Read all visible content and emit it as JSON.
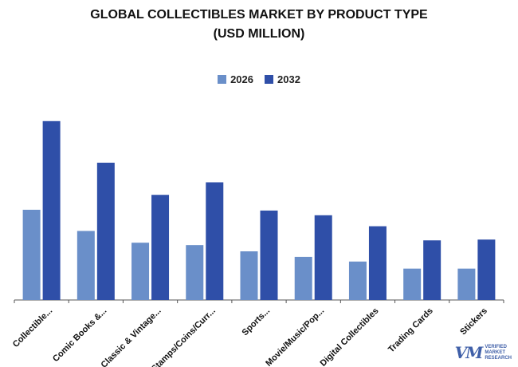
{
  "chart_data": {
    "type": "bar",
    "title_line1": "GLOBAL COLLECTIBLES MARKET BY PRODUCT TYPE",
    "title_line2": "(USD MILLION)",
    "categories": [
      "Collectible...",
      "Comic Books &...",
      "Classic & Vintage...",
      "Stamps/Coins/Curr...",
      "Sports...",
      "Movie/Music/Pop...",
      "Digital Collectibles",
      "Trading Cards",
      "Stickers"
    ],
    "series": [
      {
        "name": "2026",
        "color": "#6a8fc9",
        "values": [
          115,
          88,
          73,
          70,
          62,
          55,
          49,
          40,
          40
        ]
      },
      {
        "name": "2032",
        "color": "#2f4fa8",
        "values": [
          228,
          175,
          134,
          150,
          114,
          108,
          94,
          76,
          77
        ]
      }
    ],
    "ylim": [
      0,
      240
    ],
    "grid": false,
    "legend_position": "top-center"
  },
  "logo": {
    "line1": "VERIFIED",
    "line2": "MARKET",
    "line3": "RESEARCH"
  }
}
